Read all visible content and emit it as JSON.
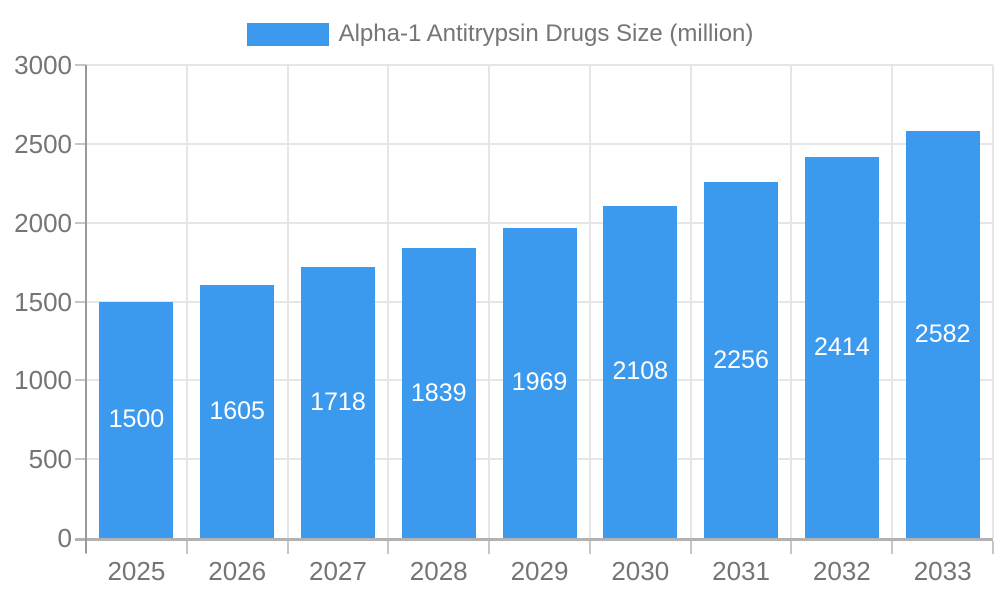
{
  "chart_data": {
    "type": "bar",
    "title": "Alpha-1 Antitrypsin Drugs Size (million)",
    "categories": [
      "2025",
      "2026",
      "2027",
      "2028",
      "2029",
      "2030",
      "2031",
      "2032",
      "2033"
    ],
    "values": [
      1500,
      1605,
      1718,
      1839,
      1969,
      2108,
      2256,
      2414,
      2582
    ],
    "value_labels_position": "inside-center",
    "ylim": [
      0,
      3000
    ],
    "yticks": [
      0,
      500,
      1000,
      1500,
      2000,
      2500,
      3000
    ],
    "xlabel": "",
    "ylabel": "",
    "grid": "on",
    "legend_position": "top-center",
    "colors": {
      "bar_fill": "#3b99ee",
      "bar_value_text": "#ffffff",
      "axis_text": "#757575",
      "legend_text": "#757575",
      "gridline": "#e6e6e6",
      "y_axis_line": "#999999",
      "x_axis_line": "#b2b2b2",
      "tick_mark": "#c6c6c6",
      "background": "#ffffff"
    }
  }
}
